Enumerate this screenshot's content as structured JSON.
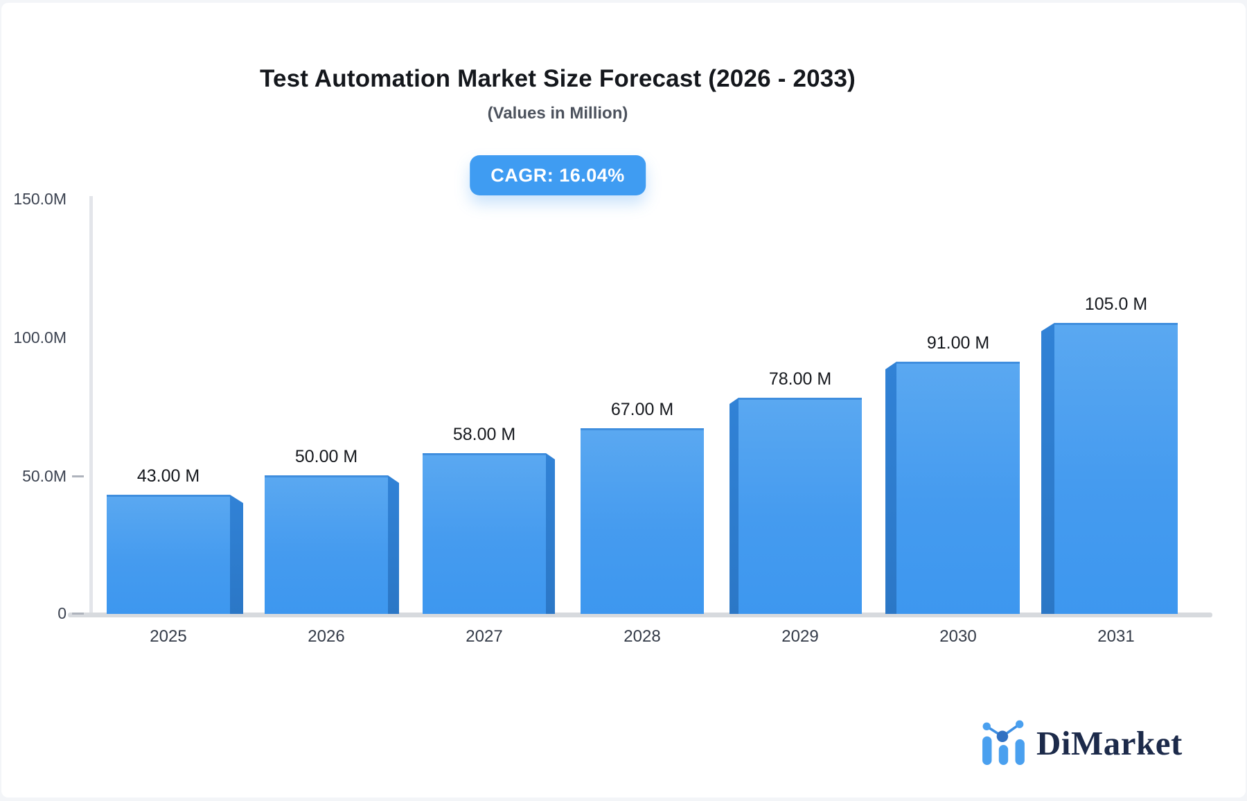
{
  "page": {
    "background": "#f3f5f8",
    "card_background": "#ffffff"
  },
  "header": {
    "title": "Test Automation Market Size Forecast (2026 - 2033)",
    "subtitle": "(Values in Million)",
    "cagr_badge": "CAGR: 16.04%",
    "badge_color": "#3f9cf2"
  },
  "chart_data": {
    "type": "bar",
    "title": "Test Automation Market Size Forecast (2026 - 2033)",
    "subtitle": "(Values in Million)",
    "cagr": "CAGR: 16.04%",
    "categories": [
      "2025",
      "2026",
      "2027",
      "2028",
      "2029",
      "2030",
      "2031"
    ],
    "values": [
      43,
      50,
      58,
      67,
      78,
      91,
      105
    ],
    "value_labels": [
      "43.00 M",
      "50.00 M",
      "58.00 M",
      "67.00 M",
      "78.00 M",
      "91.00 M",
      "105.0 M"
    ],
    "ylim": [
      0,
      150
    ],
    "ytick_labels": [
      "150.0M",
      "100.0M",
      "50.0M",
      "0"
    ],
    "grid": false,
    "legend": false,
    "bar_color": "#4aa0ef",
    "bar_side_color": "#2e7ecd",
    "style": "3d-perspective-bars-facing-center"
  },
  "footer": {
    "logo_text": "DiMarket",
    "logo_color": "#1c2a4a",
    "logo_icon_color": "#4aa0ef",
    "logo_icon_accent": "#3171c2"
  }
}
